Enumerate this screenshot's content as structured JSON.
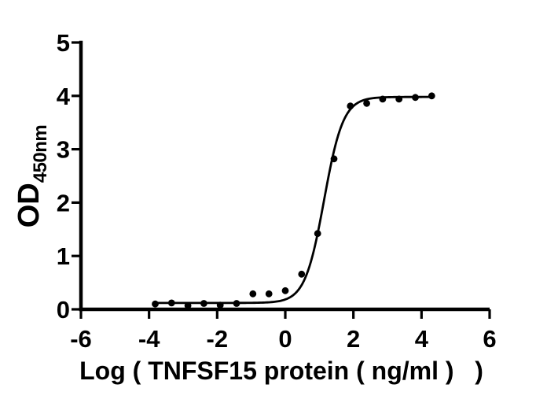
{
  "figure": {
    "description": "ELISA activity dose-response curve for TNFSF15 protein",
    "background_color": "#ffffff",
    "foreground_color": "#000000"
  },
  "chart_data": {
    "type": "scatter",
    "title": "",
    "xlabel": "Log ( TNFSF15 protein ( ng/ml )   )",
    "ylabel_base": "OD",
    "ylabel_sub": "450nm",
    "xlim": [
      -6,
      6
    ],
    "ylim": [
      0,
      5
    ],
    "x_ticks": [
      -6,
      -4,
      -2,
      0,
      2,
      4,
      6
    ],
    "y_ticks": [
      0,
      1,
      2,
      3,
      4,
      5
    ],
    "grid": false,
    "legend": "none",
    "series": [
      {
        "name": "OD450 vs log concentration",
        "marker": "filled-circle",
        "color": "#000000",
        "points": [
          {
            "x": -3.82,
            "y": 0.1
          },
          {
            "x": -3.34,
            "y": 0.12
          },
          {
            "x": -2.86,
            "y": 0.07
          },
          {
            "x": -2.39,
            "y": 0.11
          },
          {
            "x": -1.91,
            "y": 0.08
          },
          {
            "x": -1.43,
            "y": 0.11
          },
          {
            "x": -0.95,
            "y": 0.29
          },
          {
            "x": -0.48,
            "y": 0.29
          },
          {
            "x": 0.0,
            "y": 0.35
          },
          {
            "x": 0.48,
            "y": 0.66
          },
          {
            "x": 0.95,
            "y": 1.42
          },
          {
            "x": 1.43,
            "y": 2.82
          },
          {
            "x": 1.91,
            "y": 3.81
          },
          {
            "x": 2.39,
            "y": 3.86
          },
          {
            "x": 2.86,
            "y": 3.94
          },
          {
            "x": 3.34,
            "y": 3.94
          },
          {
            "x": 3.82,
            "y": 3.97
          },
          {
            "x": 4.3,
            "y": 4.0
          }
        ]
      }
    ],
    "fit_curve": {
      "model": "four-parameter-logistic",
      "bottom": 0.12,
      "top": 3.98,
      "log_ec50": 1.14,
      "hill_slope": 1.55,
      "x_start": -3.85,
      "x_end": 4.32,
      "color": "#000000"
    }
  }
}
